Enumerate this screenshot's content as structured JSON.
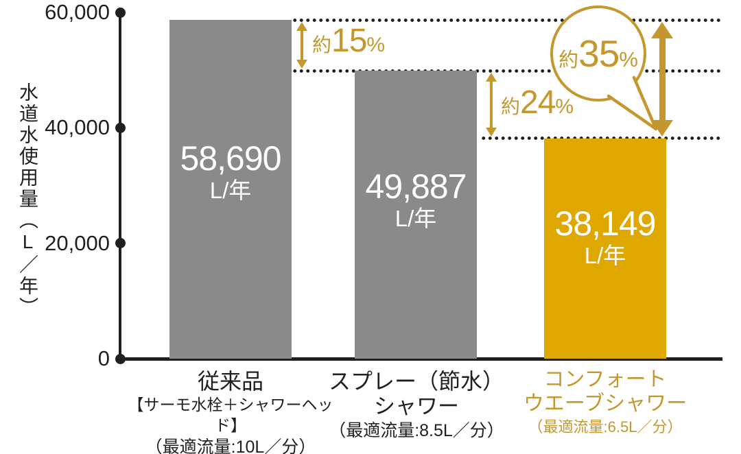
{
  "chart_data": {
    "type": "bar",
    "title": "",
    "ylabel": "水道水使用量（L／年）",
    "ylim": [
      0,
      60000
    ],
    "grid": "dotted horizontal reference lines at each bar top",
    "legend_position": "none",
    "yticks": [
      {
        "value": 60000,
        "label": "60,000"
      },
      {
        "value": 40000,
        "label": "40,000"
      },
      {
        "value": 20000,
        "label": "20,000"
      },
      {
        "value": 0,
        "label": "0"
      }
    ],
    "bars": [
      {
        "value": 58690,
        "value_label": "58,690",
        "unit": "L/年",
        "color": "#8a8a8a",
        "category_lines": [
          "従来品",
          "【サーモ水栓＋シャワーヘッド】",
          "（最適流量:10L／分）"
        ]
      },
      {
        "value": 49887,
        "value_label": "49,887",
        "unit": "L/年",
        "color": "#8a8a8a",
        "category_lines": [
          "スプレー（節水）",
          "シャワー",
          "（最適流量:8.5L／分）"
        ]
      },
      {
        "value": 38149,
        "value_label": "38,149",
        "unit": "L/年",
        "color": "#dea800",
        "category_lines": [
          "コンフォート",
          "ウエーブシャワー",
          "（最適流量:6.5L／分）"
        ]
      }
    ],
    "annotations": [
      {
        "prefix": "約",
        "value": "15",
        "suffix": "%",
        "between_bars": [
          0,
          1
        ],
        "style": "double-arrow"
      },
      {
        "prefix": "約",
        "value": "24",
        "suffix": "%",
        "between_bars": [
          1,
          2
        ],
        "style": "double-arrow"
      },
      {
        "prefix": "約",
        "value": "35",
        "suffix": "%",
        "between_bars": [
          0,
          2
        ],
        "style": "speech-bubble-with-double-arrow"
      }
    ],
    "colors": {
      "bar_gray": "#8a8a8a",
      "bar_gold": "#dea800",
      "annotation_gold": "#c4982f",
      "axis_black": "#221f20",
      "bar_value_text": "#ffffff"
    }
  }
}
